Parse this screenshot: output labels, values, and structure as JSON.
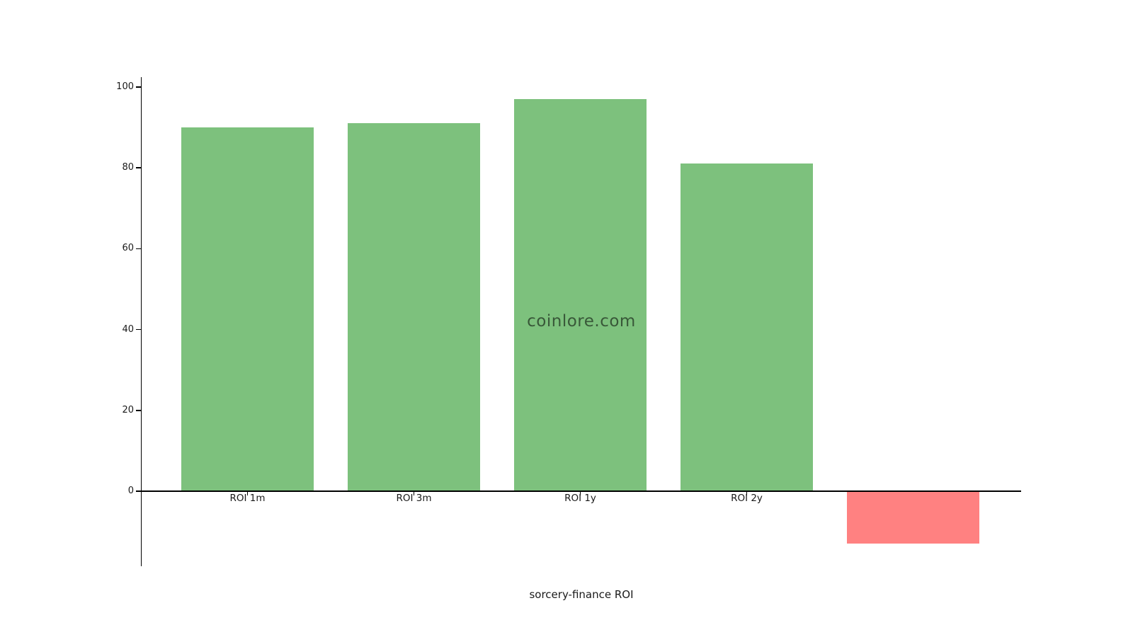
{
  "watermark": {
    "text": "coinlore.com"
  },
  "chart_data": {
    "type": "bar",
    "title": "sorcery-finance ROI",
    "title_position": "bottom",
    "categories": [
      "ROI 1m",
      "ROI 3m",
      "ROI 1y",
      "ROI 2y",
      ""
    ],
    "values": [
      90,
      91,
      97,
      81,
      -13
    ],
    "y_ticks": [
      0,
      20,
      40,
      60,
      80,
      100
    ],
    "ylim": [
      -18.5,
      102.5
    ],
    "xlabel": "sorcery-finance ROI",
    "ylabel": "",
    "grid": false,
    "legend": "none",
    "positive_color": "#7dc17d",
    "negative_color": "#ff8181",
    "axis_color": "#000000",
    "text_color": "#1a1a1a"
  }
}
